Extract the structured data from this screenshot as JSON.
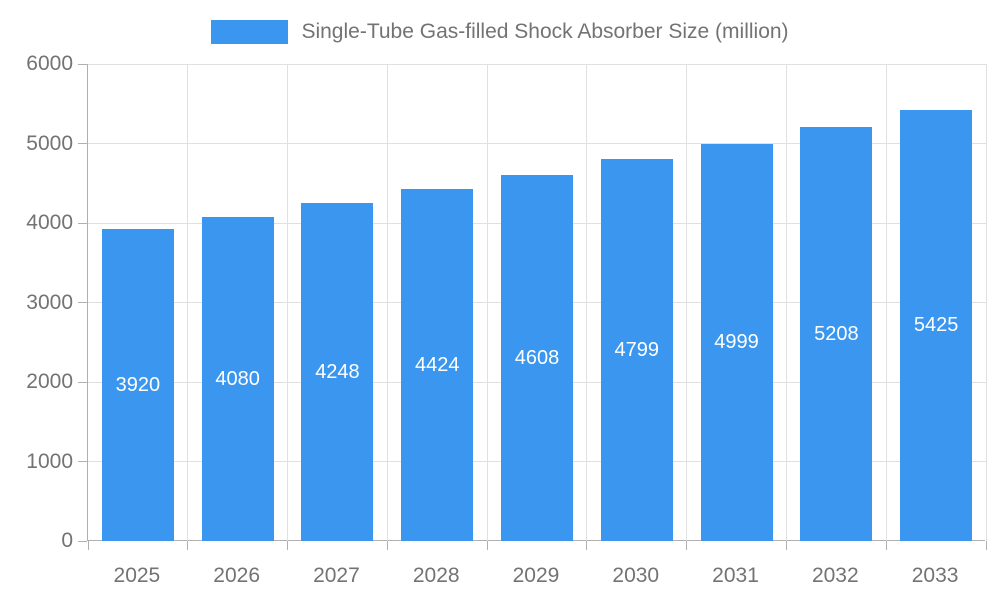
{
  "chart_data": {
    "type": "bar",
    "title": "Single-Tube Gas-filled Shock Absorber Size (million)",
    "categories": [
      "2025",
      "2026",
      "2027",
      "2028",
      "2029",
      "2030",
      "2031",
      "2032",
      "2033"
    ],
    "series": [
      {
        "name": "Single-Tube Gas-filled Shock Absorber Size (million)",
        "values": [
          3920,
          4080,
          4248,
          4424,
          4608,
          4799,
          4999,
          5208,
          5425
        ]
      }
    ],
    "xlabel": "",
    "ylabel": "",
    "ylim": [
      0,
      6000
    ],
    "ytick_interval": 1000,
    "yticks": [
      "0",
      "1000",
      "2000",
      "3000",
      "4000",
      "5000",
      "6000"
    ],
    "grid": true,
    "legend_position": "top-center",
    "value_labels": "inside-center",
    "colors": {
      "bar": "#3A96EE",
      "grid": "#E0E0E0",
      "axis": "#B0B0B0",
      "text": "#737373",
      "bar_label": "#FFFFFF",
      "background": "#FFFFFF"
    }
  },
  "legend": {
    "label": "Single-Tube Gas-filled Shock Absorber Size (million)"
  }
}
